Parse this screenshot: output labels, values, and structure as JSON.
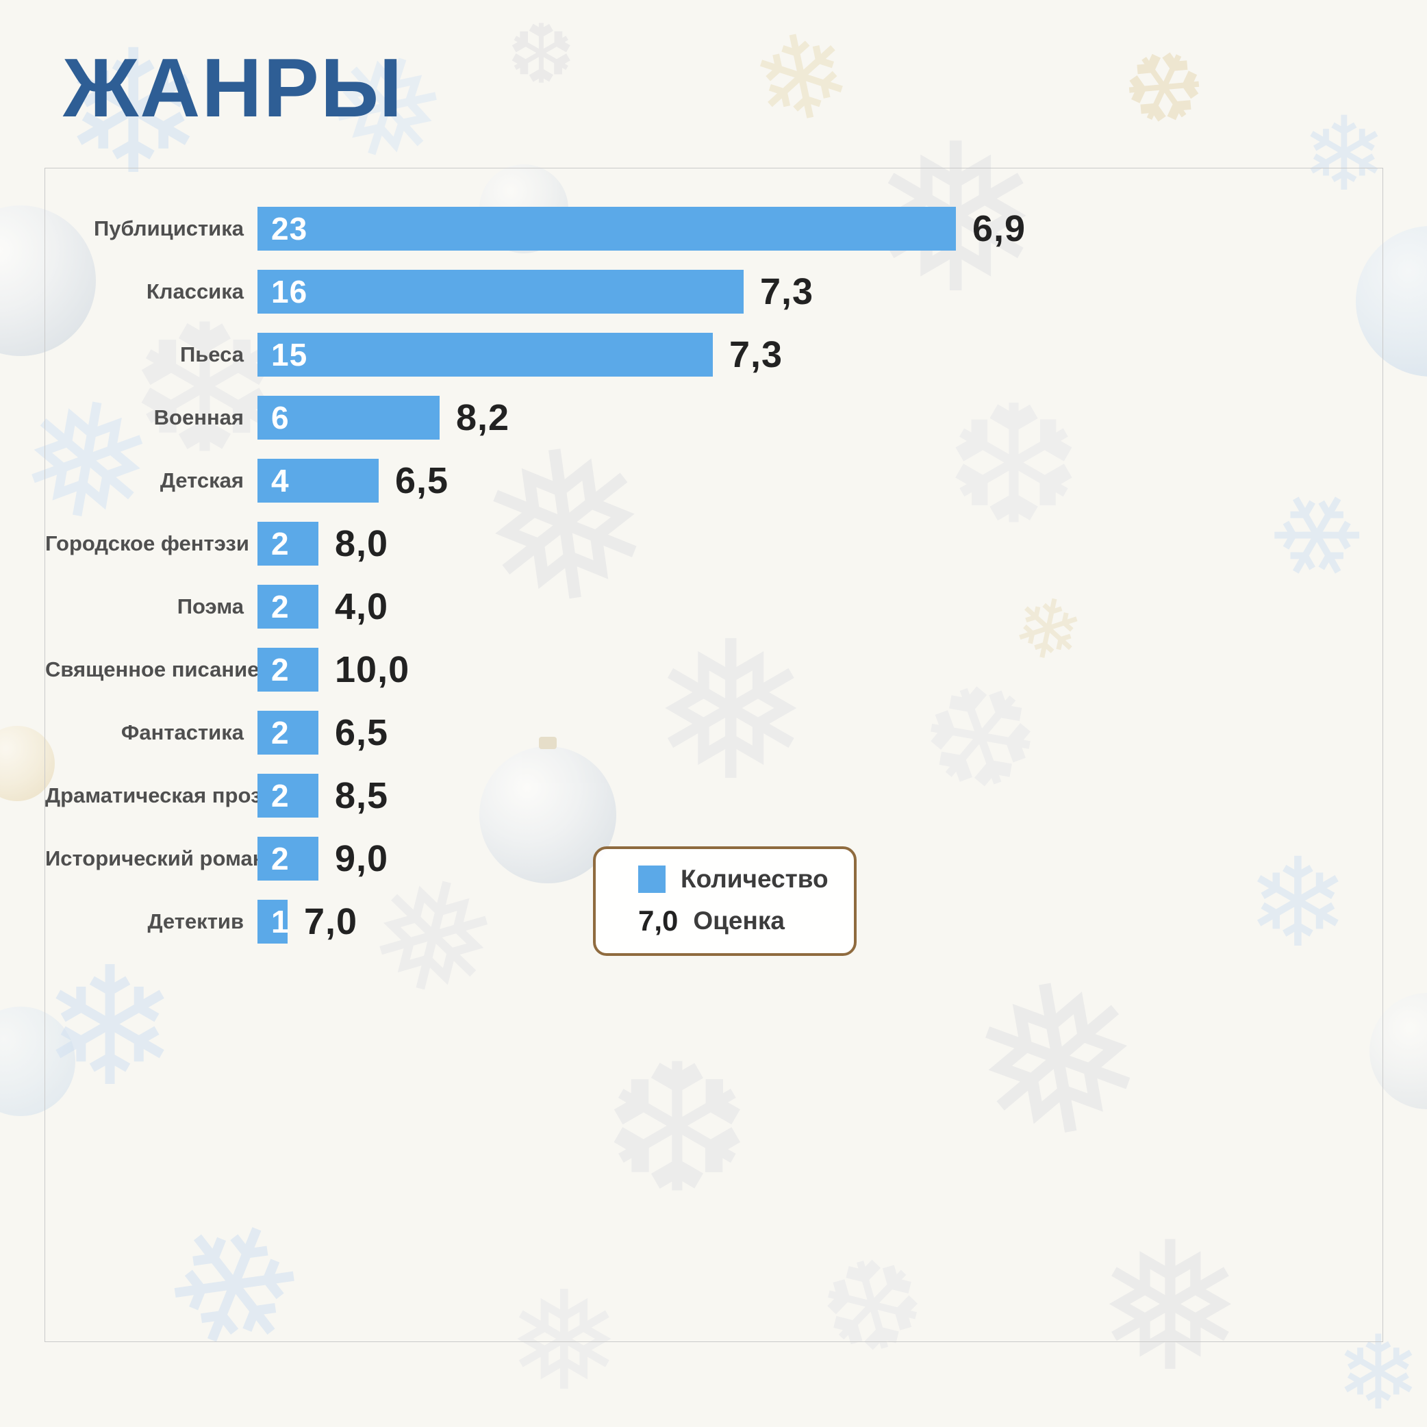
{
  "title": {
    "text": "ЖАНРЫ"
  },
  "colors": {
    "bar": "#5BA9E8",
    "title": "#2E5E95",
    "rating_text": "#222222",
    "label_text": "#4f4f4f",
    "legend_border": "#8F6B3F"
  },
  "chart_data": {
    "type": "bar",
    "orientation": "horizontal",
    "title": "ЖАНРЫ",
    "categories": [
      "Публицистика",
      "Классика",
      "Пьеса",
      "Военная",
      "Детская",
      "Городское фентэзи",
      "Поэма",
      "Священное писание",
      "Фантастика",
      "Драматическая проза",
      "Исторический роман",
      "Детектив"
    ],
    "series": [
      {
        "name": "Количество",
        "values": [
          23,
          16,
          15,
          6,
          4,
          2,
          2,
          2,
          2,
          2,
          2,
          1
        ]
      },
      {
        "name": "Оценка",
        "values": [
          "6,9",
          "7,3",
          "7,3",
          "8,2",
          "6,5",
          "8,0",
          "4,0",
          "10,0",
          "6,5",
          "8,5",
          "9,0",
          "7,0"
        ]
      }
    ],
    "xlim": [
      0,
      23
    ],
    "grid": false,
    "legend": {
      "position": "inside-bottom-right",
      "count_label": "Количество",
      "rating_label": "Оценка",
      "rating_example": "7,0"
    }
  }
}
